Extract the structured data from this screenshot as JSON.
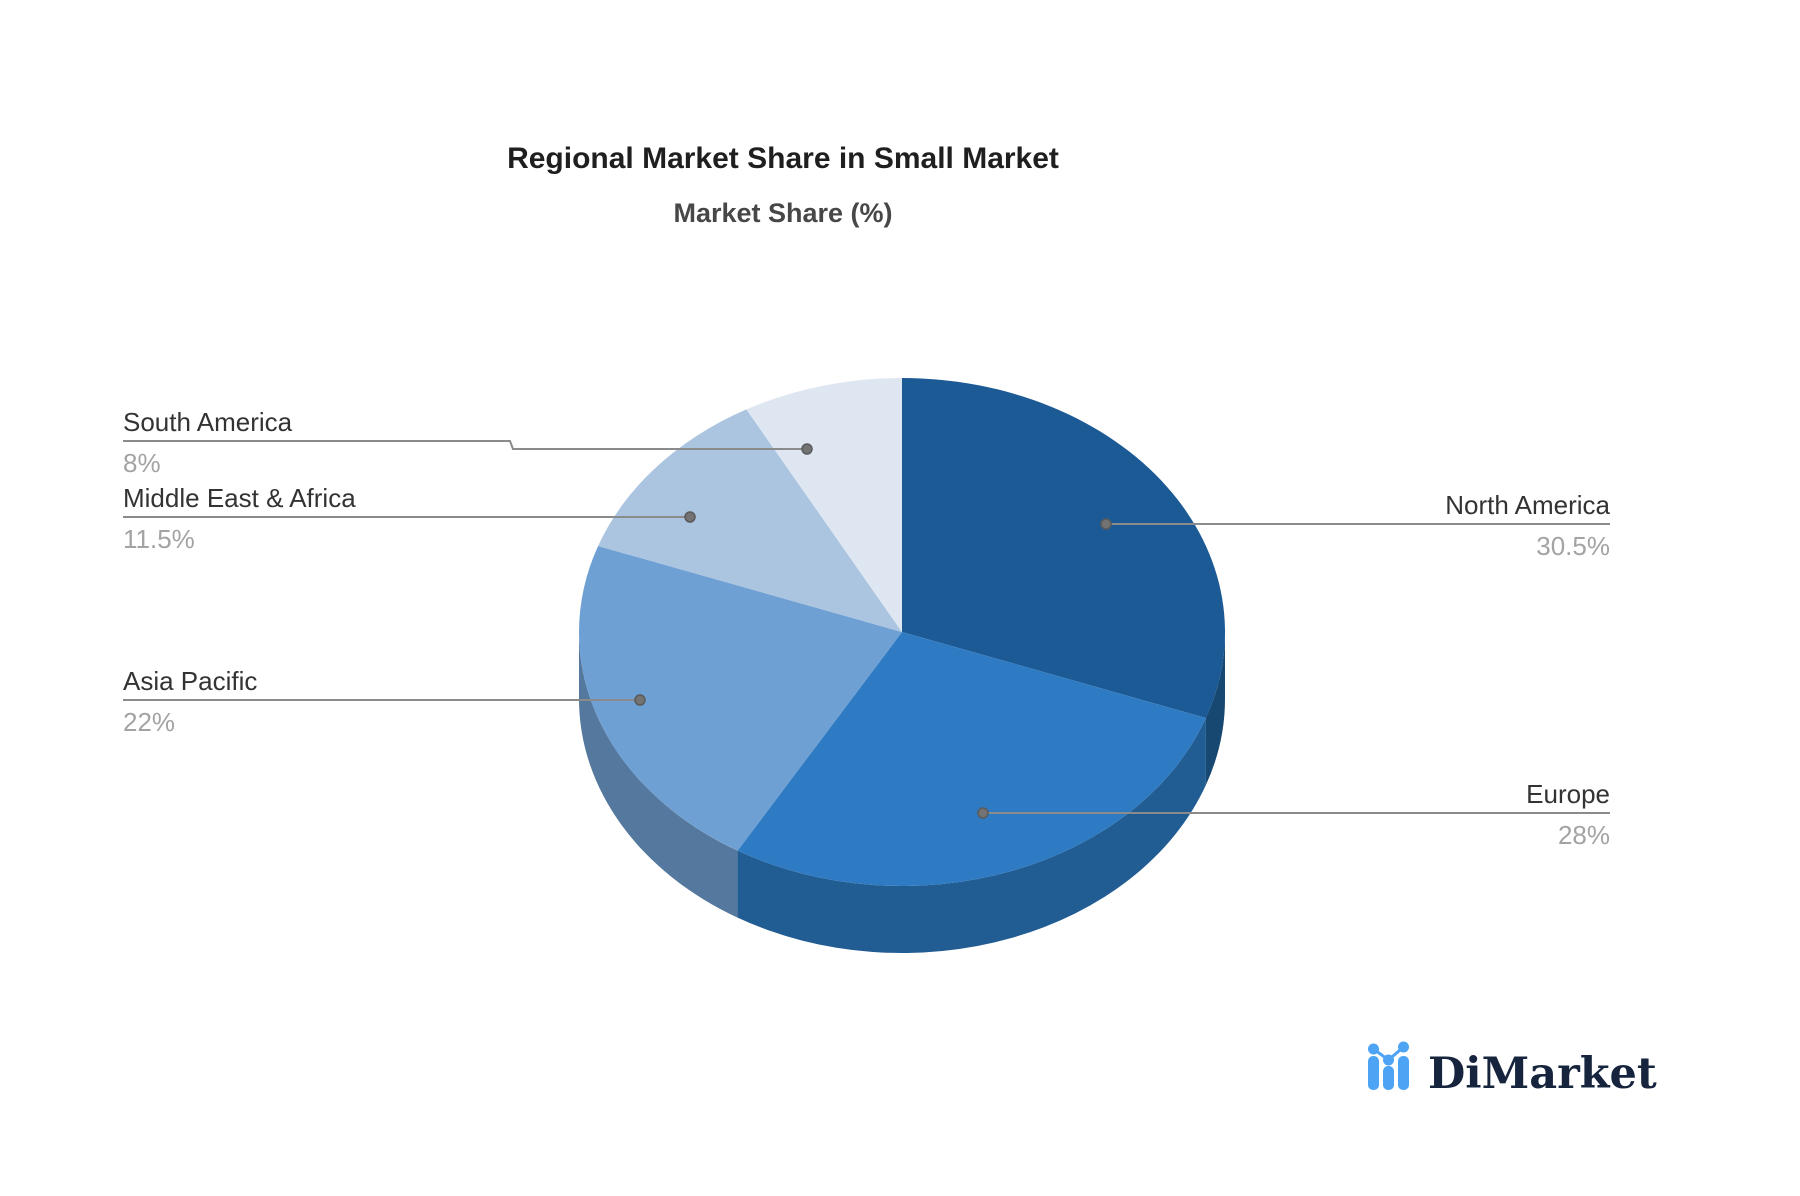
{
  "page": {
    "background": "#ffffff"
  },
  "chart": {
    "title": "Regional Market Share in Small Market",
    "subtitle": "Market Share (%)"
  },
  "chart_data": {
    "type": "pie",
    "title": "Regional Market Share in Small Market",
    "subtitle": "Market Share (%)",
    "unit": "%",
    "style": "3d-pie",
    "start_angle": "12-o-clock",
    "direction": "clockwise",
    "legend_position": "none",
    "label_style": "leader-lines",
    "slices": [
      {
        "label": "North America",
        "value": 30.5,
        "display_value": "30.5%",
        "color": "#1C5A96",
        "side_color": "#174872"
      },
      {
        "label": "Europe",
        "value": 28,
        "display_value": "28%",
        "color": "#2F7BC3",
        "side_color": "#215C93"
      },
      {
        "label": "Asia Pacific",
        "value": 22,
        "display_value": "22%",
        "color": "#6FA0D4",
        "side_color": "#54789E"
      },
      {
        "label": "Middle East & Africa",
        "value": 11.5,
        "display_value": "11.5%",
        "color": "#ABC4E0",
        "side_color": "#8FA9C6"
      },
      {
        "label": "South America",
        "value": 8,
        "display_value": "8%",
        "color": "#DEE7F1",
        "side_color": "#B9C5D4"
      }
    ],
    "label_text_color": "#333333",
    "value_text_color": "#A3A3A3",
    "leader_line_color": "#8B8B8B",
    "leader_dot_color": "#737373"
  },
  "branding": {
    "logo_text": "DiMarket",
    "logo_icon": "bar-chart-with-trend-dots-icon",
    "logo_text_color": "#16243D",
    "logo_accent_color": "#4DA3F4"
  }
}
